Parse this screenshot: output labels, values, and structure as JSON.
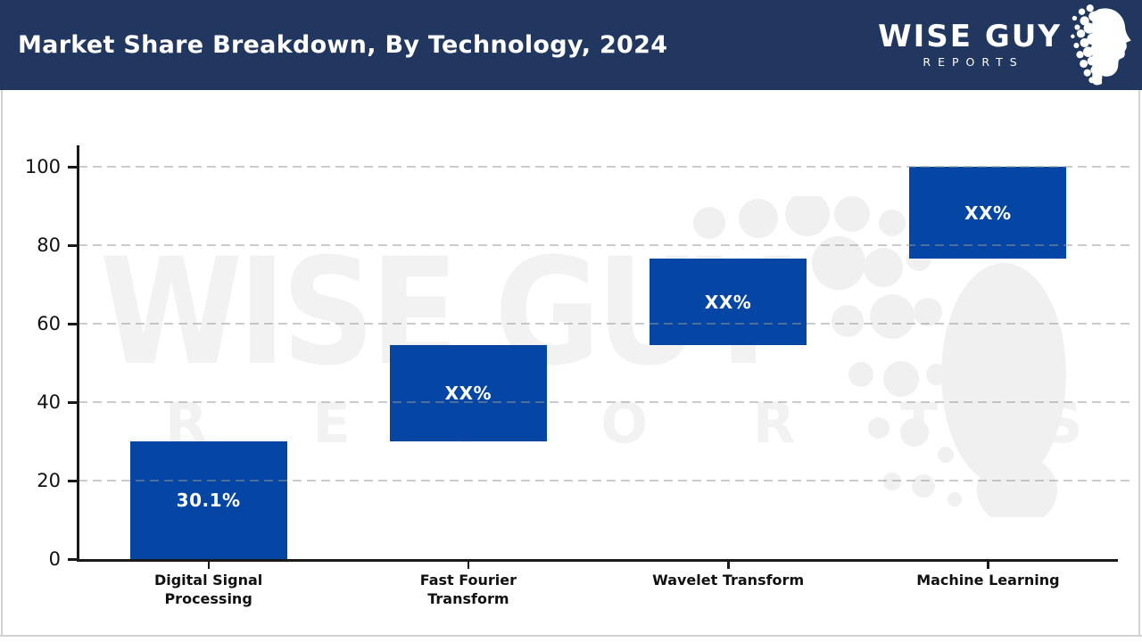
{
  "header": {
    "title": "Market Share Breakdown, By Technology, 2024",
    "logo": {
      "line1": "WISE GUY",
      "line2": "REPORTS"
    }
  },
  "watermark": {
    "line1": "WISE GUY",
    "line2": "R E P O R T S"
  },
  "colors": {
    "header_bg": "#21375f",
    "bar": "#0546a4",
    "bar_label": "#ffffff",
    "axis": "#1a1a1a",
    "watermark": "#f2f2f2"
  },
  "chart_data": {
    "type": "bar",
    "subtype": "waterfall",
    "title": "Market Share Breakdown, By Technology, 2024",
    "categories": [
      "Digital Signal\nProcessing",
      "Fast Fourier\nTransform",
      "Wavelet Transform",
      "Machine Learning"
    ],
    "segments": [
      {
        "category": "Digital Signal Processing",
        "start": 0,
        "end": 30.1,
        "label": "30.1%"
      },
      {
        "category": "Fast Fourier Transform",
        "start": 30.1,
        "end": 54.5,
        "label": "XX%"
      },
      {
        "category": "Wavelet Transform",
        "start": 54.5,
        "end": 76.5,
        "label": "XX%"
      },
      {
        "category": "Machine Learning",
        "start": 76.5,
        "end": 100,
        "label": "XX%"
      }
    ],
    "yticks": [
      0,
      20,
      40,
      60,
      80,
      100
    ],
    "ylim": [
      0,
      105
    ],
    "xlabel": "",
    "ylabel": "",
    "grid": "horizontal-dashed",
    "legend": "none"
  }
}
